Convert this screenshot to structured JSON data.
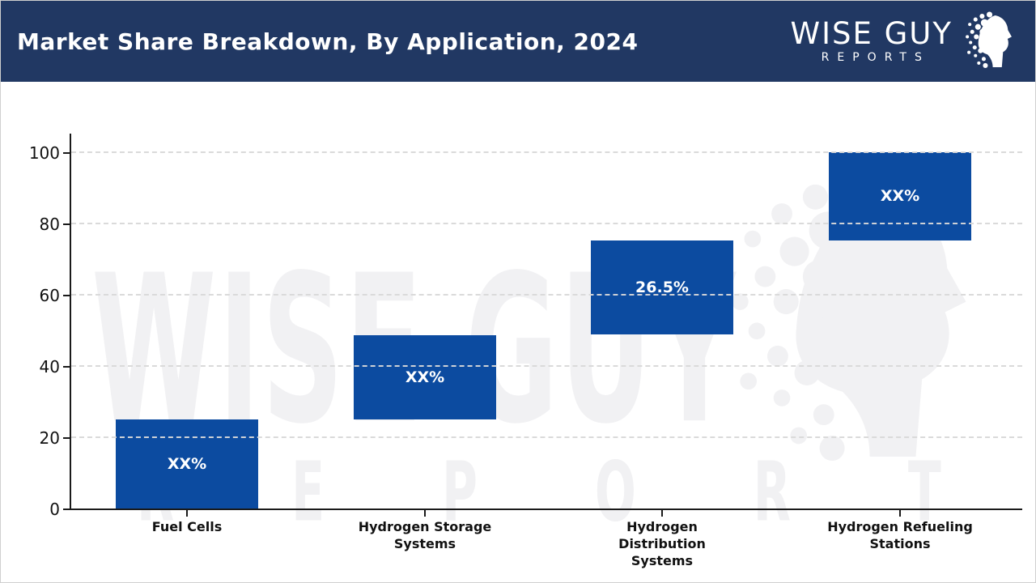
{
  "header": {
    "title": "Market Share Breakdown, By Application, 2024",
    "logo": {
      "line1": "WISE GUY",
      "line2": "REPORTS",
      "icon": "dotted-head-profile"
    }
  },
  "watermark": {
    "line1": "WISE GUY",
    "line2": "REPORTS",
    "icon": "dotted-head-profile"
  },
  "colors": {
    "header_navy": "#213863",
    "bar_blue": "#0c4ba0",
    "grid_gray": "#d9d9d9",
    "watermark_gray": "#f1f1f3",
    "axis_black": "#1a1a1a",
    "bar_label_white": "#ffffff"
  },
  "chart_data": {
    "type": "bar",
    "subtype": "waterfall-floating-segments",
    "title": "Market Share Breakdown, By Application, 2024",
    "xlabel": "",
    "ylabel": "",
    "categories": [
      "Fuel Cells",
      "Hydrogen Storage Systems",
      "Hydrogen Distribution Systems",
      "Hydrogen Refueling Stations"
    ],
    "x_tick_labels": [
      "Fuel Cells",
      "Hydrogen Storage\nSystems",
      "Hydrogen\nDistribution\nSystems",
      "Hydrogen Refueling\nStations"
    ],
    "segments": [
      {
        "category": "Fuel Cells",
        "start": 0,
        "end": 25,
        "label": "XX%"
      },
      {
        "category": "Hydrogen Storage Systems",
        "start": 25,
        "end": 48.75,
        "label": "XX%"
      },
      {
        "category": "Hydrogen Distribution Systems",
        "start": 48.75,
        "end": 75.25,
        "label": "26.5%"
      },
      {
        "category": "Hydrogen Refueling Stations",
        "start": 75.25,
        "end": 100,
        "label": "XX%"
      }
    ],
    "yticks": [
      0,
      20,
      40,
      60,
      80,
      100
    ],
    "ylim": [
      0,
      105
    ],
    "grid": "horizontal dashed, drawn over bars",
    "legend": "none",
    "bar_color": "#0c4ba0",
    "bar_label_color": "#ffffff"
  }
}
